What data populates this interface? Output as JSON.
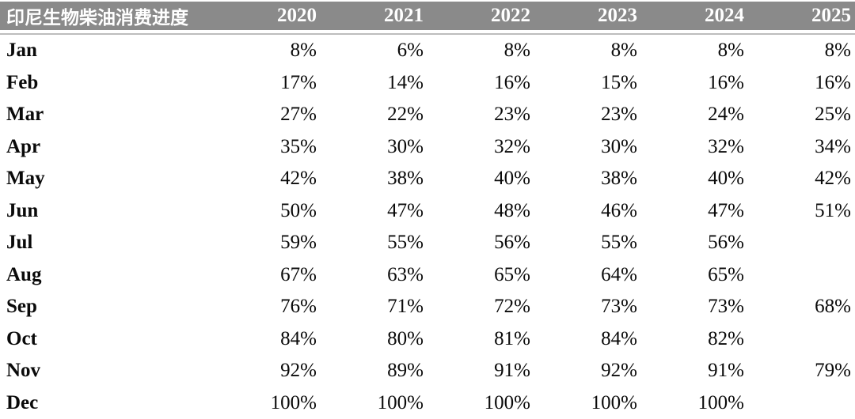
{
  "colors": {
    "header_background": "#8a8a8a",
    "header_text": "#ffffff",
    "body_text": "#0a0a0a",
    "divider_rule": "#bdbdbd",
    "page_background": "#ffffff"
  },
  "chart_data": {
    "type": "table",
    "title": "印尼生物柴油消费进度",
    "columns": [
      "2020",
      "2021",
      "2022",
      "2023",
      "2024",
      "2025"
    ],
    "row_header_field": "month",
    "unit": "%",
    "rows": [
      {
        "month": "Jan",
        "values": [
          "8%",
          "6%",
          "8%",
          "8%",
          "8%",
          "8%"
        ]
      },
      {
        "month": "Feb",
        "values": [
          "17%",
          "14%",
          "16%",
          "15%",
          "16%",
          "16%"
        ]
      },
      {
        "month": "Mar",
        "values": [
          "27%",
          "22%",
          "23%",
          "23%",
          "24%",
          "25%"
        ]
      },
      {
        "month": "Apr",
        "values": [
          "35%",
          "30%",
          "32%",
          "30%",
          "32%",
          "34%"
        ]
      },
      {
        "month": "May",
        "values": [
          "42%",
          "38%",
          "40%",
          "38%",
          "40%",
          "42%"
        ]
      },
      {
        "month": "Jun",
        "values": [
          "50%",
          "47%",
          "48%",
          "46%",
          "47%",
          "51%"
        ]
      },
      {
        "month": "Jul",
        "values": [
          "59%",
          "55%",
          "56%",
          "55%",
          "56%",
          ""
        ]
      },
      {
        "month": "Aug",
        "values": [
          "67%",
          "63%",
          "65%",
          "64%",
          "65%",
          ""
        ]
      },
      {
        "month": "Sep",
        "values": [
          "76%",
          "71%",
          "72%",
          "73%",
          "73%",
          "68%"
        ]
      },
      {
        "month": "Oct",
        "values": [
          "84%",
          "80%",
          "81%",
          "84%",
          "82%",
          ""
        ]
      },
      {
        "month": "Nov",
        "values": [
          "92%",
          "89%",
          "91%",
          "92%",
          "91%",
          "79%"
        ]
      },
      {
        "month": "Dec",
        "values": [
          "100%",
          "100%",
          "100%",
          "100%",
          "100%",
          ""
        ]
      }
    ]
  }
}
